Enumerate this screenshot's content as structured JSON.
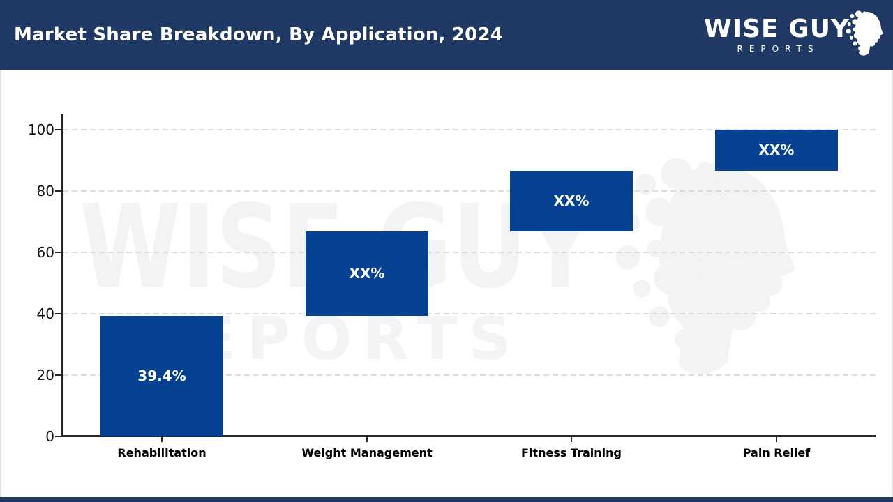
{
  "header": {
    "title": "Market Share Breakdown, By Application, 2024",
    "logo": {
      "name": "WISE GUY",
      "sub": "REPORTS"
    }
  },
  "watermark": {
    "line1": "WISE GUY",
    "line2": "REPORTS"
  },
  "chart_data": {
    "type": "bar",
    "subtype": "waterfall",
    "title": "Market Share Breakdown, By Application, 2024",
    "categories": [
      "Rehabilitation",
      "Weight Management",
      "Fitness Training",
      "Pain Relief"
    ],
    "segments": [
      {
        "category": "Rehabilitation",
        "start": 0,
        "end": 39.4,
        "label": "39.4%"
      },
      {
        "category": "Weight Management",
        "start": 39.4,
        "end": 66.9,
        "label": "XX%"
      },
      {
        "category": "Fitness Training",
        "start": 66.9,
        "end": 86.6,
        "label": "XX%"
      },
      {
        "category": "Pain Relief",
        "start": 86.6,
        "end": 100,
        "label": "XX%"
      }
    ],
    "xlabel": "",
    "ylabel": "",
    "ylim": [
      0,
      105
    ],
    "yticks": [
      0,
      20,
      40,
      60,
      80,
      100
    ],
    "grid": "horizontal-dashed",
    "legend": "none",
    "bar_color": "#064291",
    "bar_label_color": "#ffffff"
  },
  "colors": {
    "header_bg": "#1f3864",
    "footer_bg": "#1f3864",
    "bar": "#064291",
    "grid": "#dcdcdc",
    "axis": "#262626",
    "watermark": "#f2f3f5"
  }
}
